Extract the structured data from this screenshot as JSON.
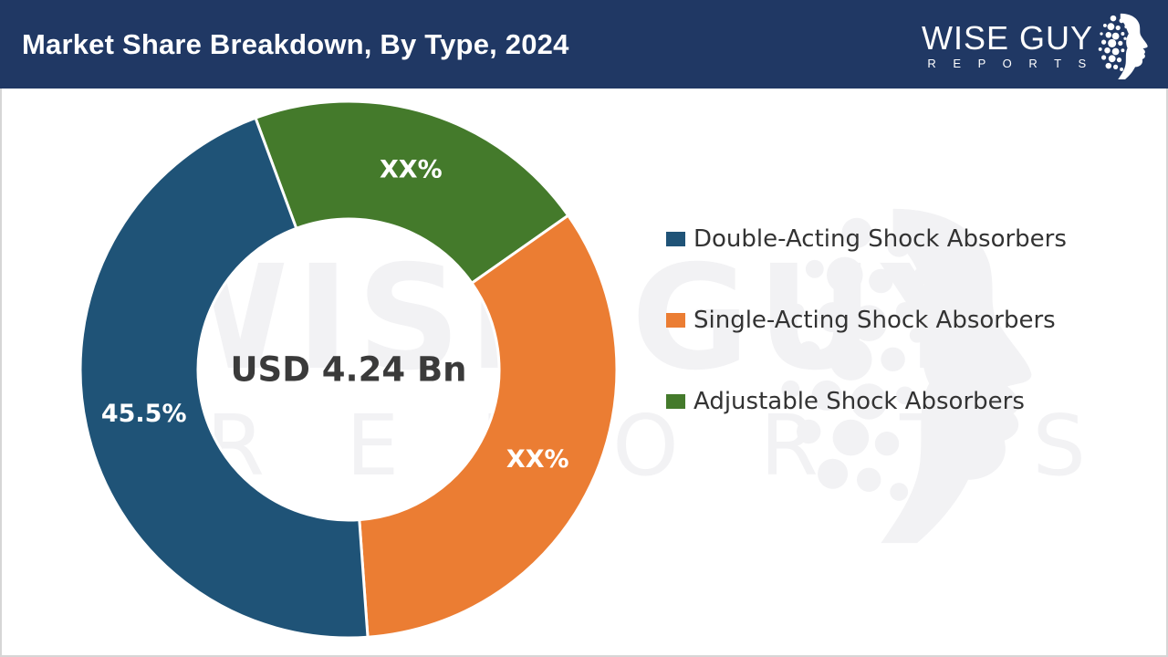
{
  "header": {
    "title": "Market Share Breakdown, By Type, 2024",
    "bg_color": "#203864",
    "logo": {
      "line1": "WISE GUY",
      "line2": "R E P O R T S"
    }
  },
  "watermark": {
    "line1": "WISE GUY",
    "line2": "R E P O R T S"
  },
  "chart_data": {
    "type": "pie",
    "subtype": "donut",
    "title": "Market Share Breakdown, By Type, 2024",
    "center_label": "USD 4.24 Bn",
    "start_angle_deg": -20.3,
    "legend_position": "right",
    "slices": [
      {
        "label": "Adjustable Shock Absorbers",
        "display_value": "XX%",
        "percent_est": 20.9,
        "color": "#447A2B"
      },
      {
        "label": "Single-Acting Shock Absorbers",
        "display_value": "XX%",
        "percent_est": 33.6,
        "color": "#EB7D33"
      },
      {
        "label": "Double-Acting Shock Absorbers",
        "display_value": "45.5%",
        "percent_est": 45.5,
        "color": "#1F5377"
      }
    ]
  },
  "legend": {
    "items": [
      {
        "label": "Double-Acting Shock Absorbers",
        "color": "#1F5377"
      },
      {
        "label": "Single-Acting Shock Absorbers",
        "color": "#EB7D33"
      },
      {
        "label": "Adjustable Shock Absorbers",
        "color": "#447A2B"
      }
    ]
  },
  "colors": {
    "header_bg": "#203864",
    "text_dark": "#333333",
    "watermark": "#f2f2f4",
    "border": "#d6d6d6"
  }
}
